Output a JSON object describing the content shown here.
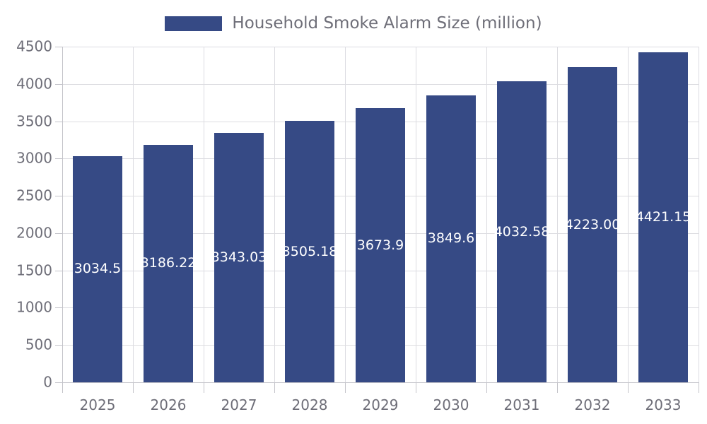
{
  "chart_data": {
    "type": "bar",
    "title": "",
    "legend": "Household Smoke Alarm Size (million)",
    "legend_position": "top",
    "categories": [
      "2025",
      "2026",
      "2027",
      "2028",
      "2029",
      "2030",
      "2031",
      "2032",
      "2033"
    ],
    "series": [
      {
        "name": "Household Smoke Alarm Size (million)",
        "values": [
          3034.5,
          3186.22,
          3343.03,
          3505.18,
          3673.9,
          3849.6,
          4032.58,
          4223.0,
          4421.15
        ],
        "labels": [
          "3034.5",
          "3186.22",
          "3343.03",
          "3505.18",
          "3673.9",
          "3849.6",
          "4032.58",
          "4223.00",
          "4421.15"
        ]
      }
    ],
    "xlabel": "",
    "ylabel": "",
    "ylim": [
      0,
      4500
    ],
    "ytick_step": 500,
    "yticks": [
      "0",
      "500",
      "1000",
      "1500",
      "2000",
      "2500",
      "3000",
      "3500",
      "4000",
      "4500"
    ],
    "grid": "horizontal and vertical light gray gridlines",
    "colors": {
      "bar": "#364a85",
      "axis_text": "#6e6e78",
      "grid_line": "#dcdce1",
      "axis_line": "#c4c4ca",
      "bar_label_text": "#ffffff",
      "background": "#ffffff"
    }
  }
}
